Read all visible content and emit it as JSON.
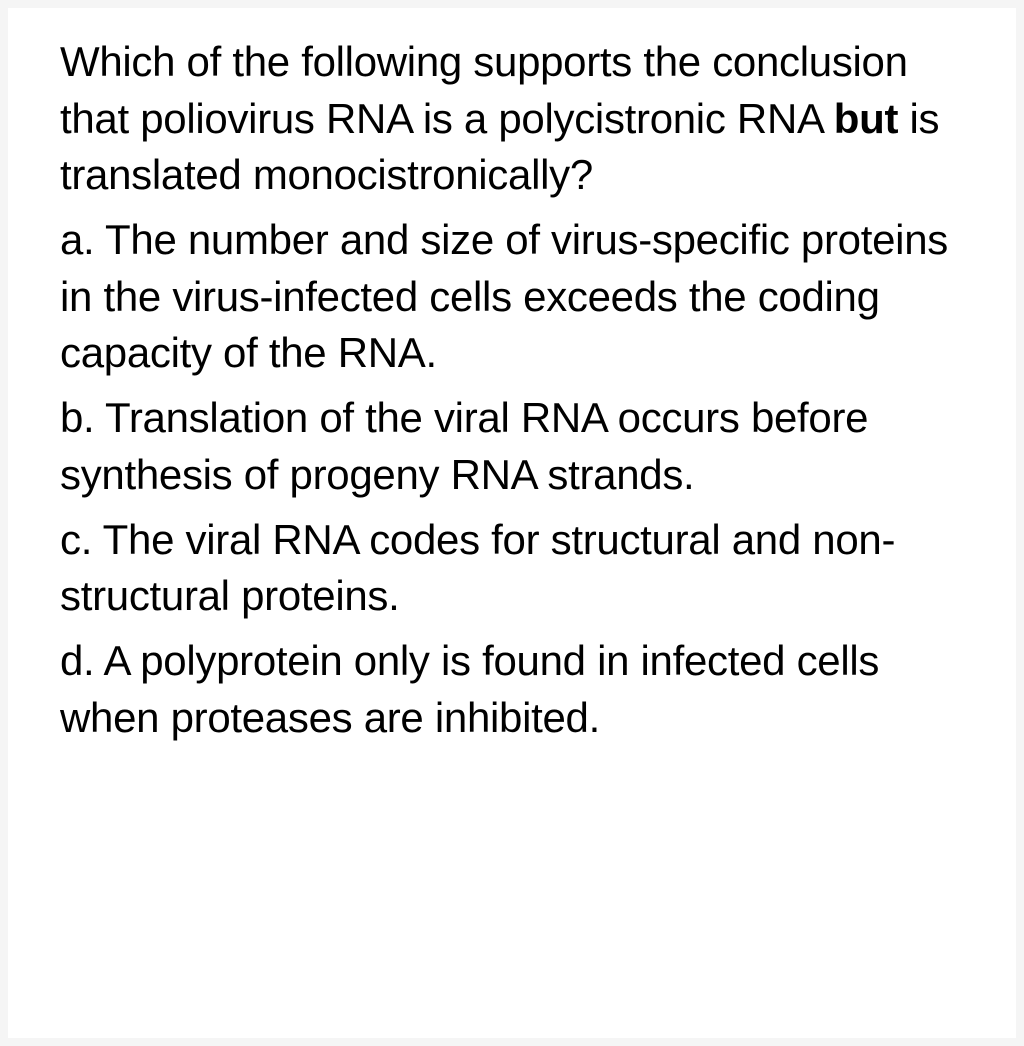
{
  "question": {
    "text_before_bold": "Which of the following supports the conclusion that poliovirus RNA is a polycistronic RNA ",
    "bold_word": "but",
    "text_after_bold": " is translated monocistronically?"
  },
  "options": {
    "a": "a. The number and size of virus-specific proteins in the virus-infected cells exceeds the coding capacity of the RNA.",
    "b": "b. Translation of the viral RNA occurs before synthesis of progeny RNA strands.",
    "c": "c. The viral RNA codes for structural and non-structural proteins.",
    "d": "d. A polyprotein only is found in infected cells when proteases are inhibited."
  },
  "styling": {
    "background_color": "#ffffff",
    "page_background": "#f5f5f5",
    "text_color": "#000000",
    "font_size": 42,
    "line_height": 1.35,
    "font_family": "system-ui",
    "bold_weight": 700
  }
}
